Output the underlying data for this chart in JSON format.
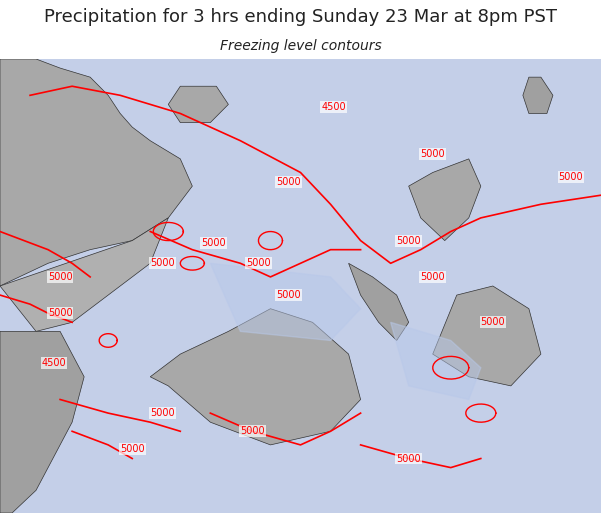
{
  "title": "Precipitation for 3 hrs ending Sunday 23 Mar at 8pm PST",
  "subtitle": "Freezing level contours",
  "title_fontsize": 13,
  "subtitle_fontsize": 10,
  "title_color": "#222222",
  "subtitle_color": "#222222",
  "background_color": "#ffffff",
  "header_bg": "#f0f0f0",
  "fig_width": 6.01,
  "fig_height": 5.13,
  "dpi": 100,
  "map_bg_ocean": "#c8d8f0",
  "map_bg_land_light": "#c8c8c8",
  "map_bg_land_dark": "#a0a0a0",
  "contour_color": "#ff0000",
  "land_color": "#b0b0b0",
  "ocean_color": "#c8d4e8"
}
